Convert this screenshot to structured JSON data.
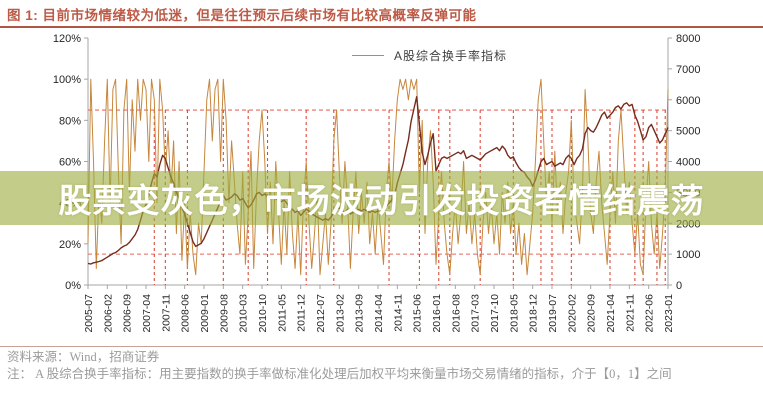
{
  "page": {
    "title": "图 1: 目前市场情绪较为低迷，但是往往预示后续市场有比较高概率反弹可能"
  },
  "legend": {
    "label": "A股综合换手率指标"
  },
  "watermark": {
    "text": "股票变灰色，市场波动引发投资者情绪震荡"
  },
  "footer": {
    "source": "资料来源：Wind，招商证券",
    "note": "注：  A 股综合换手率指标：用主要指数的换手率做标准化处理后加权平均来衡量市场交易情绪的指标，介于【0，1】之间"
  },
  "chart_data": {
    "type": "line",
    "title": "目前市场情绪较为低迷，但是往往预示后续市场有比较高概率反弹可能",
    "legend_position": "top-center",
    "grid": false,
    "x_unit": "month",
    "x_start": "2005-07",
    "x_end": "2023-01",
    "x_tick_step_months": 7,
    "x_tick_labels": [
      "2005-07",
      "2006-02",
      "2006-09",
      "2007-04",
      "2007-11",
      "2008-06",
      "2009-01",
      "2009-08",
      "2010-03",
      "2010-10",
      "2011-05",
      "2011-12",
      "2012-07",
      "2013-02",
      "2013-09",
      "2014-04",
      "2014-11",
      "2015-06",
      "2016-01",
      "2016-08",
      "2017-03",
      "2017-10",
      "2018-05",
      "2018-12",
      "2019-07",
      "2020-02",
      "2020-09",
      "2021-04",
      "2021-11",
      "2022-06",
      "2023-01"
    ],
    "left_axis": {
      "min": 0,
      "max": 120,
      "tick_labels": [
        "0%",
        "20%",
        "40%",
        "60%",
        "80%",
        "100%",
        "120%"
      ]
    },
    "right_axis": {
      "min": 0,
      "max": 8000,
      "tick_labels": [
        "0",
        "1000",
        "2000",
        "3000",
        "4000",
        "5000",
        "6000",
        "7000",
        "8000"
      ]
    },
    "thresholds": {
      "upper_pct": 85,
      "lower_pct": 15,
      "color": "#e4685c"
    },
    "event_months": [
      24,
      28,
      36,
      49,
      58,
      65,
      79,
      89,
      109,
      120,
      127,
      131,
      142,
      154,
      164,
      168,
      175,
      189,
      198,
      201,
      206,
      209
    ],
    "event_line_color": "#da4a3c",
    "series": [
      {
        "name": "A股综合换手率指标",
        "axis": "left",
        "unit": "%",
        "color": "#c6873d",
        "values": [
          20,
          100,
          60,
          8,
          45,
          30,
          70,
          100,
          40,
          95,
          100,
          55,
          20,
          85,
          100,
          45,
          90,
          65,
          100,
          80,
          100,
          95,
          60,
          100,
          90,
          40,
          100,
          85,
          55,
          75,
          45,
          70,
          25,
          60,
          12,
          40,
          8,
          35,
          15,
          5,
          30,
          20,
          55,
          90,
          100,
          70,
          95,
          100,
          60,
          100,
          80,
          40,
          70,
          50,
          30,
          15,
          55,
          10,
          35,
          65,
          8,
          45,
          70,
          85,
          60,
          25,
          50,
          20,
          60,
          35,
          10,
          40,
          15,
          55,
          25,
          8,
          35,
          5,
          40,
          60,
          30,
          8,
          25,
          45,
          5,
          20,
          35,
          10,
          30,
          70,
          85,
          55,
          30,
          60,
          40,
          8,
          35,
          55,
          25,
          45,
          30,
          50,
          20,
          35,
          15,
          40,
          25,
          10,
          45,
          60,
          40,
          70,
          90,
          100,
          95,
          100,
          90,
          100,
          95,
          100,
          45,
          80,
          25,
          60,
          75,
          50,
          10,
          35,
          55,
          30,
          15,
          5,
          25,
          40,
          20,
          35,
          60,
          25,
          40,
          20,
          35,
          15,
          5,
          30,
          45,
          25,
          40,
          20,
          35,
          15,
          45,
          30,
          50,
          25,
          40,
          15,
          30,
          10,
          25,
          5,
          20,
          35,
          60,
          90,
          100,
          70,
          40,
          55,
          30,
          65,
          35,
          50,
          25,
          45,
          55,
          80,
          40,
          30,
          20,
          45,
          95,
          70,
          35,
          25,
          50,
          65,
          40,
          25,
          10,
          35,
          55,
          30,
          70,
          85,
          60,
          35,
          50,
          30,
          15,
          35,
          10,
          5,
          40,
          60,
          30,
          15,
          35,
          8,
          25,
          45,
          95
        ]
      },
      {
        "name": "index-right-axis",
        "axis": "right",
        "unit": "points",
        "color": "#772c1c",
        "values": [
          700,
          680,
          720,
          740,
          760,
          790,
          850,
          900,
          960,
          1020,
          1050,
          1120,
          1200,
          1260,
          1300,
          1380,
          1500,
          1620,
          1800,
          2100,
          2400,
          2600,
          2900,
          3300,
          3600,
          3500,
          3900,
          4200,
          4100,
          3800,
          3500,
          3300,
          3000,
          2800,
          2500,
          2300,
          2000,
          1700,
          1400,
          1250,
          1300,
          1350,
          1500,
          1700,
          1900,
          2100,
          2300,
          2500,
          2700,
          2900,
          2750,
          2800,
          2850,
          2950,
          2900,
          2750,
          2800,
          2650,
          2500,
          2600,
          2750,
          2950,
          3000,
          2900,
          2950,
          2850,
          2800,
          2850,
          2800,
          2750,
          2700,
          2750,
          2650,
          2500,
          2450,
          2350,
          2400,
          2250,
          2350,
          2450,
          2400,
          2300,
          2250,
          2200,
          2150,
          2100,
          2150,
          2100,
          2200,
          2350,
          2450,
          2500,
          2400,
          2350,
          2450,
          2300,
          2350,
          2400,
          2450,
          2400,
          2450,
          2400,
          2350,
          2400,
          2350,
          2400,
          2450,
          2500,
          2550,
          2650,
          2750,
          2900,
          3300,
          3600,
          3900,
          4300,
          4700,
          5300,
          5700,
          6100,
          5200,
          4300,
          3900,
          4200,
          4600,
          4900,
          3700,
          3900,
          4100,
          4150,
          4100,
          4150,
          4200,
          4250,
          4300,
          4250,
          4350,
          4100,
          4150,
          4200,
          4150,
          4100,
          4050,
          4150,
          4250,
          4300,
          4350,
          4400,
          4450,
          4350,
          4500,
          4400,
          4200,
          4100,
          4150,
          3950,
          3800,
          3700,
          3650,
          3500,
          3400,
          3200,
          3400,
          3700,
          4000,
          4100,
          3900,
          3950,
          4000,
          3850,
          3900,
          3950,
          3900,
          4100,
          4200,
          4100,
          3900,
          4100,
          4200,
          4400,
          4900,
          5100,
          5000,
          4950,
          5100,
          5300,
          5500,
          5600,
          5400,
          5500,
          5600,
          5750,
          5800,
          5700,
          5850,
          5900,
          5800,
          5850,
          5500,
          5300,
          5000,
          4700,
          4800,
          5100,
          5200,
          5000,
          4800,
          4600,
          4700,
          4900,
          5100
        ]
      }
    ]
  }
}
